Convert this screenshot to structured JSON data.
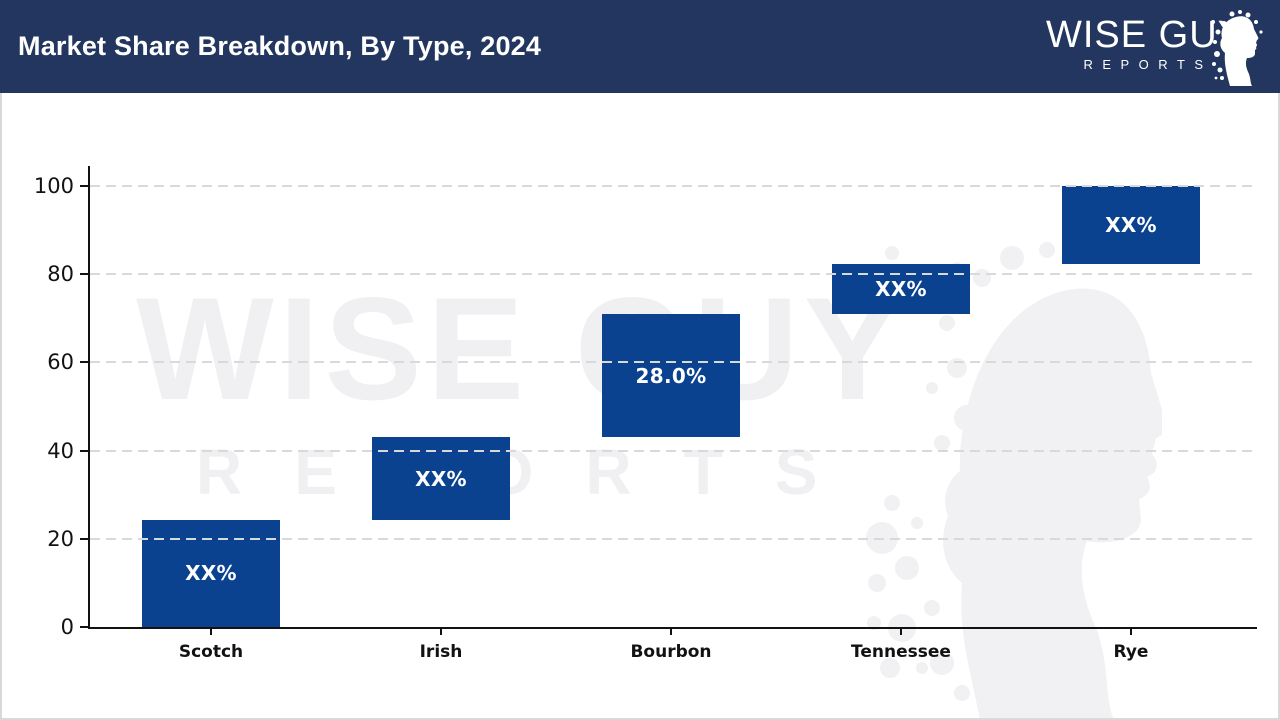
{
  "header": {
    "title": "Market Share Breakdown, By Type, 2024",
    "logo": {
      "line1": "WISE GUY",
      "line2": "REPORTS"
    }
  },
  "watermark": {
    "line1": "WISE GUY",
    "line2": "REPORTS"
  },
  "colors": {
    "header_bg": "#22365F",
    "bar": "#0A4290",
    "grid": "#D9D9D9",
    "axis": "#121212",
    "bar_label_text": "#FFFFFF",
    "watermark": "#F0F0F2"
  },
  "chart_data": {
    "type": "bar",
    "subtype": "waterfall",
    "title": "Market Share Breakdown, By Type, 2024",
    "xlabel": "",
    "ylabel": "",
    "ylim": [
      0,
      100
    ],
    "yticks": [
      0,
      20,
      40,
      60,
      80,
      100
    ],
    "grid": "horizontal dashed",
    "legend": "none",
    "categories": [
      "Scotch",
      "Irish",
      "Bourbon",
      "Tennessee",
      "Rye"
    ],
    "bars": [
      {
        "category": "Scotch",
        "label": "XX%",
        "start": 0,
        "end": 24.3,
        "value": 24.3
      },
      {
        "category": "Irish",
        "label": "XX%",
        "start": 24.3,
        "end": 43.0,
        "value": 18.7
      },
      {
        "category": "Bourbon",
        "label": "28.0%",
        "start": 43.0,
        "end": 71.0,
        "value": 28.0
      },
      {
        "category": "Tennessee",
        "label": "XX%",
        "start": 71.0,
        "end": 82.3,
        "value": 11.3
      },
      {
        "category": "Rye",
        "label": "XX%",
        "start": 82.3,
        "end": 100.0,
        "value": 17.7
      }
    ]
  }
}
